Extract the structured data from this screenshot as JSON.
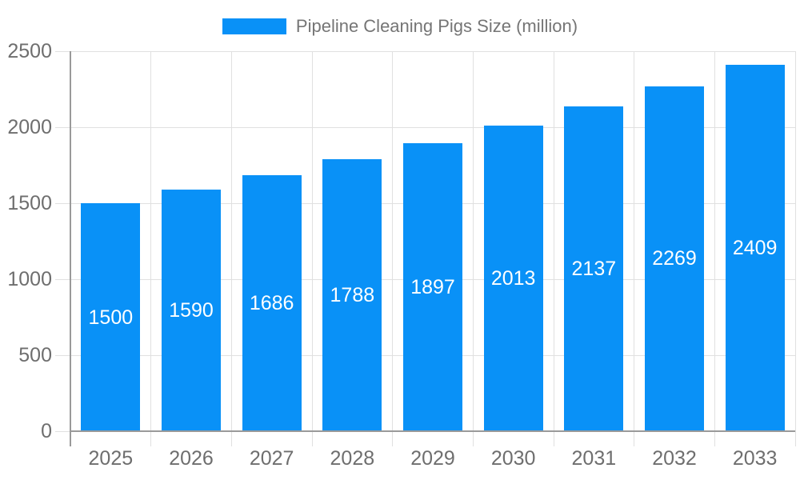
{
  "chart_data": {
    "type": "bar",
    "title": "",
    "legend": {
      "label": "Pipeline Cleaning Pigs Size (million)",
      "position": "top"
    },
    "categories": [
      "2025",
      "2026",
      "2027",
      "2028",
      "2029",
      "2030",
      "2031",
      "2032",
      "2033"
    ],
    "values": [
      1500,
      1590,
      1686,
      1788,
      1897,
      2013,
      2137,
      2269,
      2409
    ],
    "xlabel": "",
    "ylabel": "",
    "ylim": [
      0,
      2500
    ],
    "yticks": [
      0,
      500,
      1000,
      1500,
      2000,
      2500
    ],
    "grid": true,
    "value_labels_inside_bars": true,
    "colors": {
      "bar": "#0991f7",
      "value_label": "#ffffff",
      "grid": "#e0e0e0",
      "axis": "#9a9a9a",
      "tick_label": "#6e6e6e",
      "legend_text": "#757575",
      "background": "#ffffff"
    }
  }
}
